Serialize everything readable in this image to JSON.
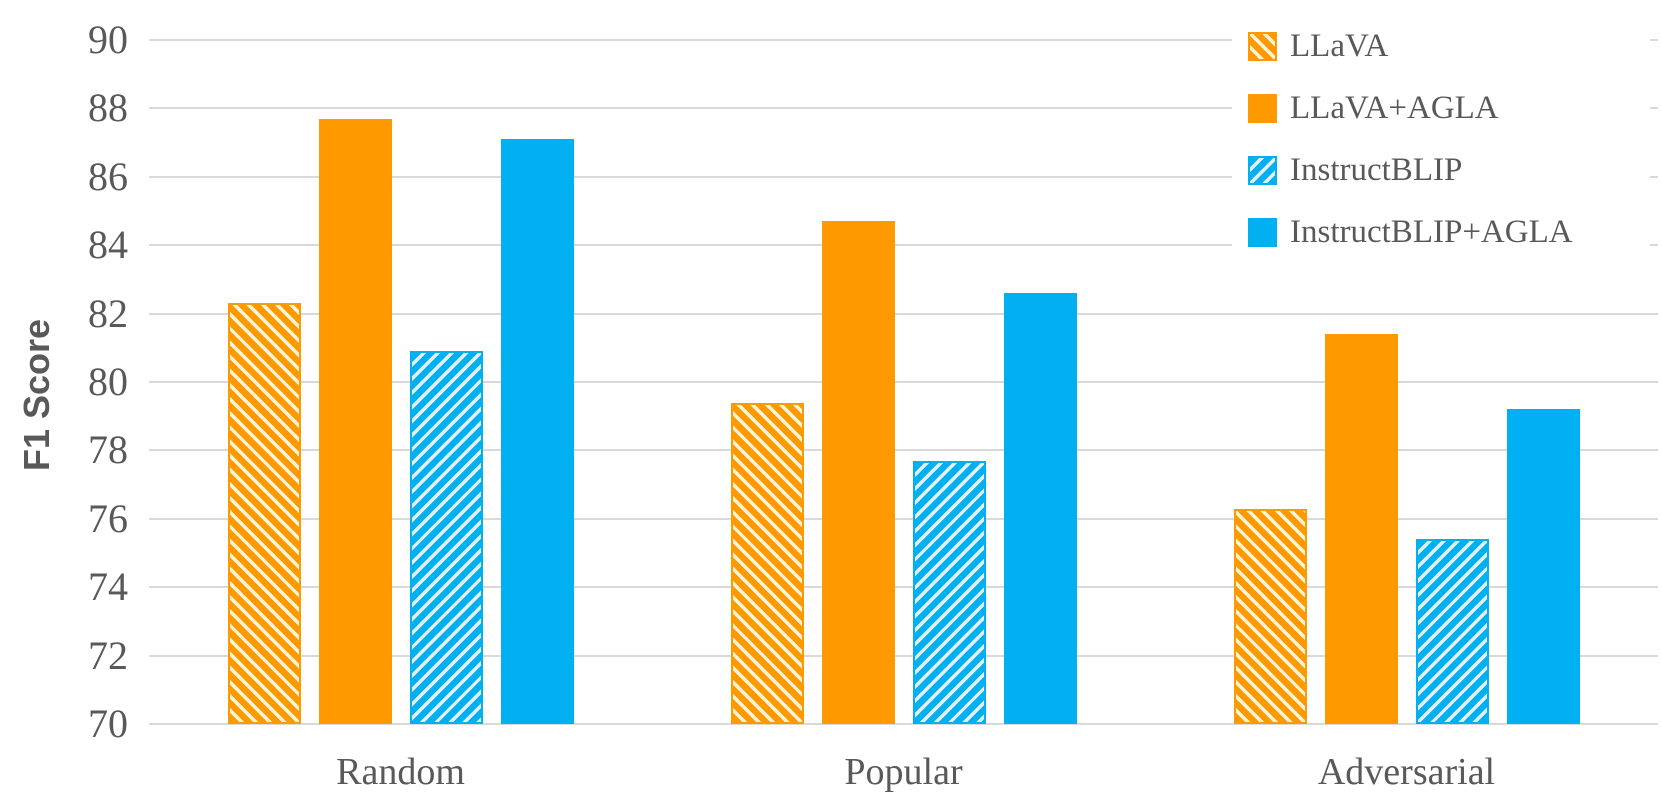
{
  "chart_data": {
    "type": "bar",
    "title": "",
    "xlabel": "",
    "ylabel": "F1 Score",
    "ylim": [
      70,
      90
    ],
    "ytick_step": 2,
    "yticks": [
      90,
      88,
      86,
      84,
      82,
      80,
      78,
      76,
      74,
      72,
      70
    ],
    "categories": [
      "Random",
      "Popular",
      "Adversarial"
    ],
    "series": [
      {
        "name": "LLaVA",
        "values": [
          82.3,
          79.4,
          76.3
        ],
        "color": "#FF9900",
        "pattern": "diagonal-down-hatch",
        "hatch_bg": "#FFF4D8"
      },
      {
        "name": "LLaVA+AGLA",
        "values": [
          87.7,
          84.7,
          81.4
        ],
        "color": "#FF9900",
        "pattern": "solid",
        "hatch_bg": ""
      },
      {
        "name": "InstructBLIP",
        "values": [
          80.9,
          77.7,
          75.4
        ],
        "color": "#00B0F0",
        "pattern": "diagonal-up-hatch",
        "hatch_bg": "#E4EFF6"
      },
      {
        "name": "InstructBLIP+AGLA",
        "values": [
          87.1,
          82.6,
          79.2
        ],
        "color": "#00B0F0",
        "pattern": "solid",
        "hatch_bg": ""
      }
    ],
    "grid": true,
    "gridline_color": "#D9D9D9",
    "text_color": "#595959",
    "legend_position": "top-right"
  }
}
